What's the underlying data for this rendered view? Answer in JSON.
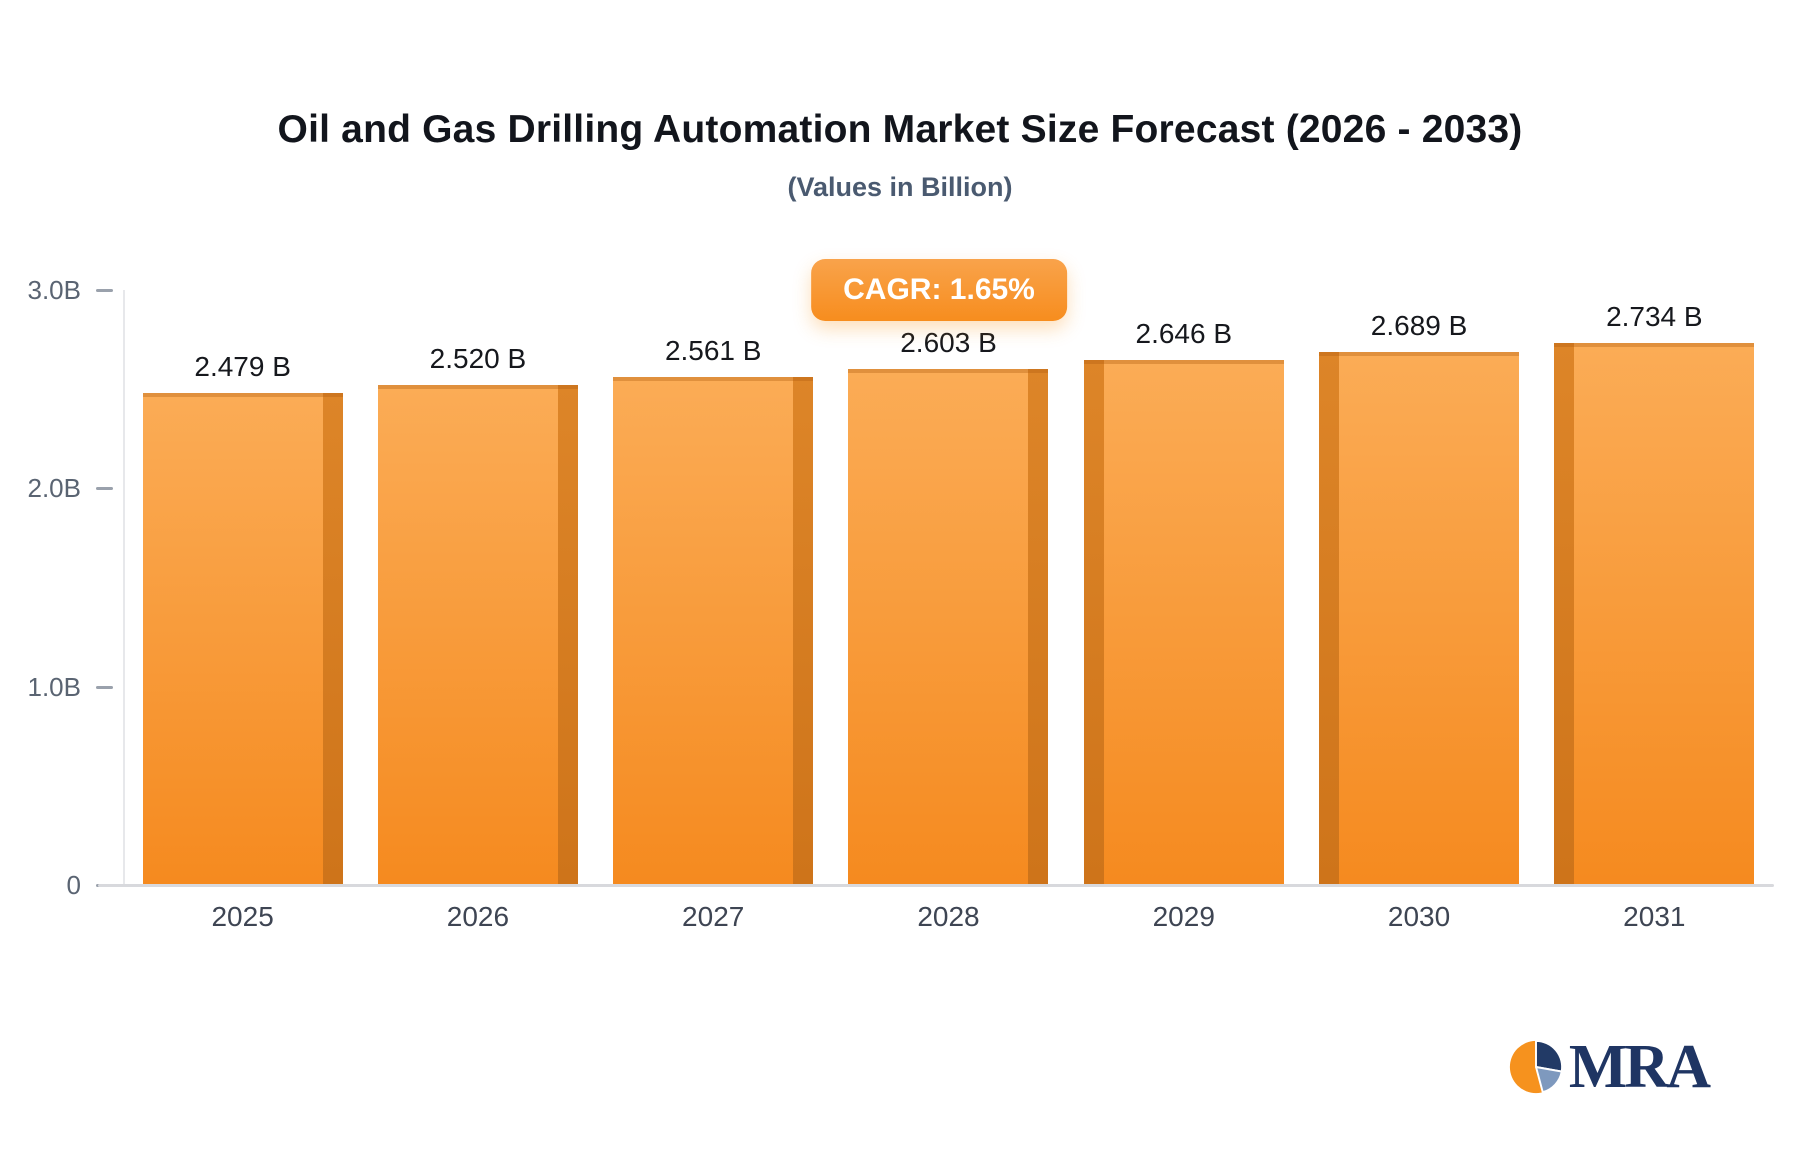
{
  "header": {
    "title": "Oil and Gas Drilling Automation Market Size Forecast (2026 - 2033)",
    "subtitle": "(Values in Billion)"
  },
  "badge": {
    "label": "CAGR: 1.65%",
    "background": "#F7941D",
    "text_color": "#FFFFFF"
  },
  "logo": {
    "text": "MRA",
    "navy": "#223A66",
    "orange": "#F6921E",
    "steel": "#7E99BE"
  },
  "chart_data": {
    "type": "bar",
    "title": "Oil and Gas Drilling Automation Market Size Forecast (2026 - 2033)",
    "subtitle": "(Values in Billion)",
    "categories": [
      "2025",
      "2026",
      "2027",
      "2028",
      "2029",
      "2030",
      "2031"
    ],
    "values": [
      2.479,
      2.52,
      2.561,
      2.603,
      2.646,
      2.689,
      2.734
    ],
    "value_labels": [
      "2.479 B",
      "2.520 B",
      "2.561 B",
      "2.603 B",
      "2.646 B",
      "2.689 B",
      "2.734 B"
    ],
    "cagr": "1.65%",
    "xlabel": "",
    "ylabel": "",
    "ylim": [
      0,
      3.0
    ],
    "yticks": [
      {
        "value": 3.0,
        "label": "3.0B"
      },
      {
        "value": 2.0,
        "label": "2.0B"
      },
      {
        "value": 1.0,
        "label": "1.0B"
      },
      {
        "value": 0,
        "label": "0"
      }
    ],
    "grid": false,
    "legend": null,
    "bar_colors": {
      "front_top": "#FBAC56",
      "front_bottom": "#F58A1F",
      "side_top": "#DD8528",
      "side_bottom": "#CE741A"
    }
  }
}
